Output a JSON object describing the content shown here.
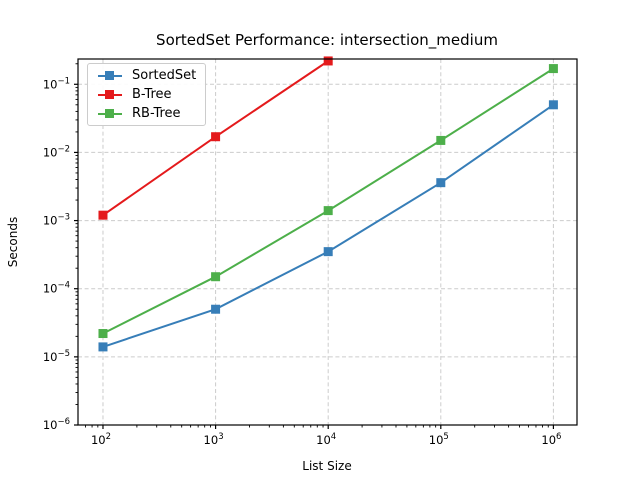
{
  "chart_data": {
    "type": "line",
    "title": "SortedSet Performance: intersection_medium",
    "xlabel": "List Size",
    "ylabel": "Seconds",
    "x_scale": "log",
    "y_scale": "log",
    "xlim": [
      60,
      1620000
    ],
    "ylim": [
      1e-06,
      0.235
    ],
    "grid": "major gridlines, dashed, light gray",
    "legend_position": "upper left",
    "background_color": "#ffffff",
    "spine_color": "#000000",
    "grid_color": "#cccccc",
    "x_ticks": [
      {
        "value": 100,
        "base": "10",
        "exponent": "2"
      },
      {
        "value": 1000,
        "base": "10",
        "exponent": "3"
      },
      {
        "value": 10000,
        "base": "10",
        "exponent": "4"
      },
      {
        "value": 100000,
        "base": "10",
        "exponent": "5"
      },
      {
        "value": 1000000,
        "base": "10",
        "exponent": "6"
      }
    ],
    "y_ticks": [
      {
        "value": 0.1,
        "base": "10",
        "exponent": "−1"
      },
      {
        "value": 0.01,
        "base": "10",
        "exponent": "−2"
      },
      {
        "value": 0.001,
        "base": "10",
        "exponent": "−3"
      },
      {
        "value": 0.0001,
        "base": "10",
        "exponent": "−4"
      },
      {
        "value": 1e-05,
        "base": "10",
        "exponent": "−5"
      },
      {
        "value": 1e-06,
        "base": "10",
        "exponent": "−6"
      }
    ],
    "series": [
      {
        "name": "SortedSet",
        "color": "#377eb8",
        "marker": "square",
        "x": [
          100,
          1000,
          10000,
          100000,
          1000000
        ],
        "y": [
          1.4e-05,
          5e-05,
          0.00035,
          0.0036,
          0.05
        ]
      },
      {
        "name": "B-Tree",
        "color": "#e41a1c",
        "marker": "square",
        "x": [
          100,
          1000,
          10000
        ],
        "y": [
          0.0012,
          0.017,
          0.22
        ]
      },
      {
        "name": "RB-Tree",
        "color": "#4daf4a",
        "marker": "square",
        "x": [
          100,
          1000,
          10000,
          100000,
          1000000
        ],
        "y": [
          2.2e-05,
          0.00015,
          0.0014,
          0.015,
          0.17
        ]
      }
    ]
  }
}
